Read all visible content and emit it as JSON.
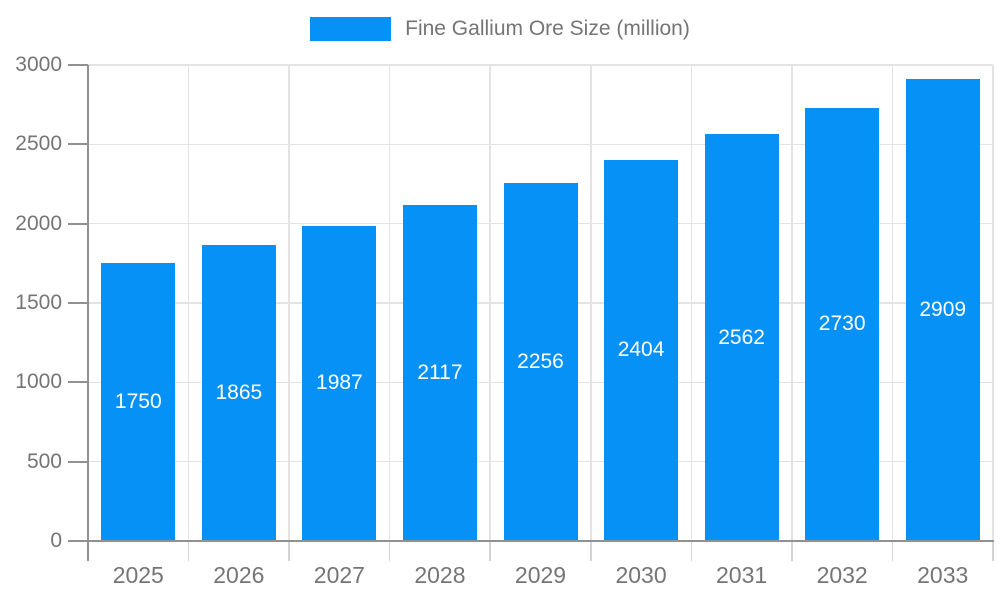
{
  "legend": {
    "label": "Fine Gallium Ore Size (million)"
  },
  "colors": {
    "background": "#ffffff",
    "bar": "#0591f5",
    "bar_label": "#ffffff",
    "axis_line": "#919191",
    "gridline": "#e3e3e3",
    "minor_tick": "#d4d4d4",
    "text_gray": "#757575"
  },
  "chart_data": {
    "type": "bar",
    "title": "Fine Gallium Ore Size (million)",
    "categories": [
      "2025",
      "2026",
      "2027",
      "2028",
      "2029",
      "2030",
      "2031",
      "2032",
      "2033"
    ],
    "values": [
      1750,
      1865,
      1987,
      2117,
      2256,
      2404,
      2562,
      2730,
      2909
    ],
    "series_name": "Fine Gallium Ore Size (million)",
    "xlabel": "",
    "ylabel": "",
    "ylim": [
      0,
      3000
    ],
    "ytick_step": 500,
    "yticks": [
      0,
      500,
      1000,
      1500,
      2000,
      2500,
      3000
    ],
    "grid": true,
    "legend_position": "top-center",
    "bar_labels": "centered-white"
  }
}
